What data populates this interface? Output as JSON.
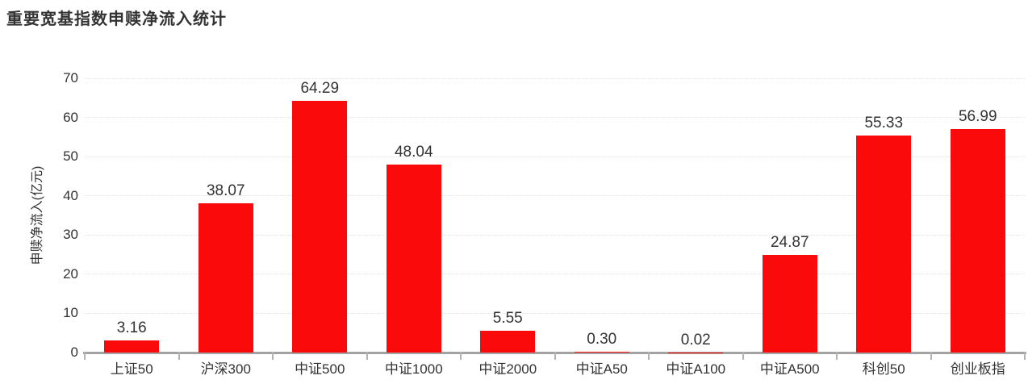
{
  "title": "重要宽基指数申赎净流入统计",
  "chart_data": {
    "type": "bar",
    "title": "重要宽基指数申赎净流入统计",
    "categories": [
      "上证50",
      "沪深300",
      "中证500",
      "中证1000",
      "中证2000",
      "中证A50",
      "中证A100",
      "中证A500",
      "科创50",
      "创业板指"
    ],
    "values": [
      3.16,
      38.07,
      64.29,
      48.04,
      5.55,
      0.3,
      0.02,
      24.87,
      55.33,
      56.99
    ],
    "value_labels": [
      "3.16",
      "38.07",
      "64.29",
      "48.04",
      "5.55",
      "0.30",
      "0.02",
      "24.87",
      "55.33",
      "56.99"
    ],
    "xlabel": "",
    "ylabel": "申赎净流入(亿元)",
    "ylim": [
      0,
      70
    ],
    "yticks": [
      0,
      10,
      20,
      30,
      40,
      50,
      60,
      70
    ],
    "grid": "horizontal-dotted",
    "legend": "none"
  },
  "colors": {
    "bar": "#fa0a0a",
    "text": "#333333",
    "grid": "#dfe2ea",
    "axis_line": "#a3a3a3",
    "axis_tick": "#b3b3b3",
    "background": "#ffffff"
  }
}
